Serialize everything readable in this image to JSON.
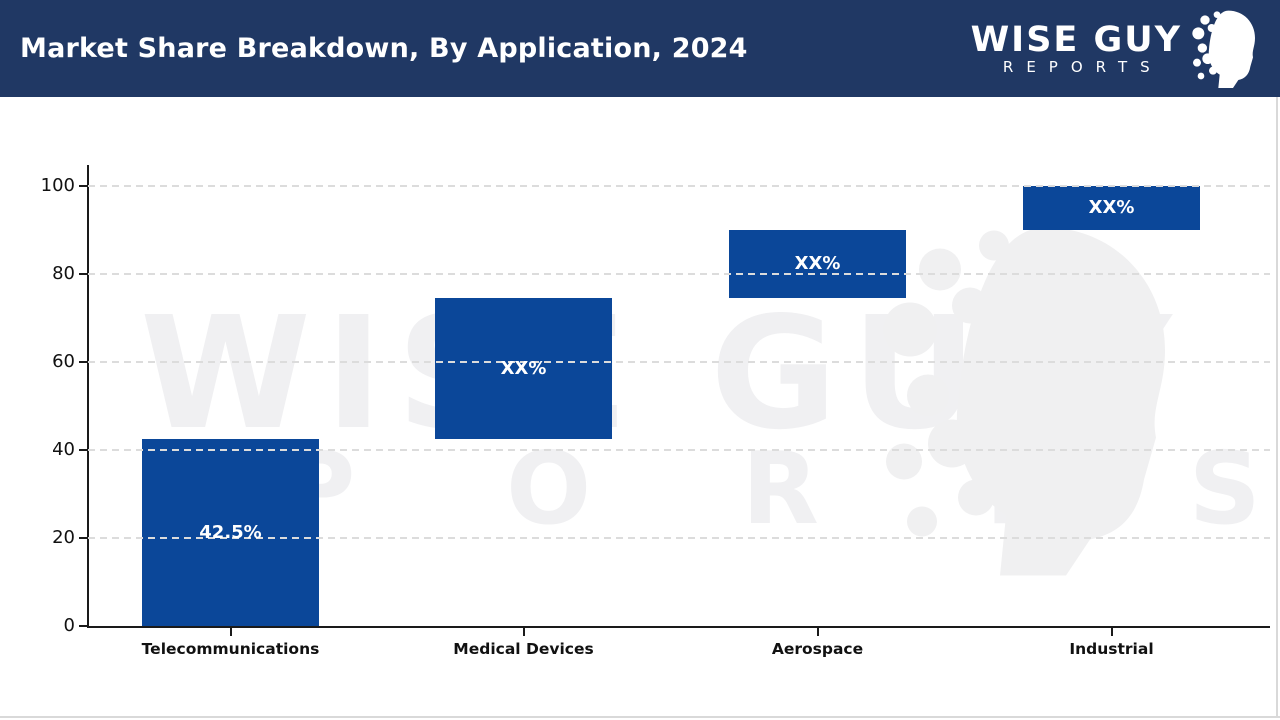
{
  "header": {
    "title": "Market Share Breakdown, By Application, 2024",
    "bg_color": "#203864",
    "logo": {
      "line1": "WISE GUY",
      "line2": "REPORTS"
    }
  },
  "watermark": {
    "line1": "WISE GU Y",
    "line2": "P O R T S"
  },
  "chart_data": {
    "type": "bar",
    "subtype": "waterfall-stacked-share",
    "title": "Market Share Breakdown, By Application, 2024",
    "categories": [
      "Telecommunications",
      "Medical Devices",
      "Aerospace",
      "Industrial"
    ],
    "segments": [
      {
        "category": "Telecommunications",
        "start": 0,
        "end": 42.5,
        "label": "42.5%"
      },
      {
        "category": "Medical Devices",
        "start": 42.5,
        "end": 74.5,
        "label": "XX%"
      },
      {
        "category": "Aerospace",
        "start": 74.5,
        "end": 90,
        "label": "XX%"
      },
      {
        "category": "Industrial",
        "start": 90,
        "end": 100,
        "label": "XX%"
      }
    ],
    "yticks": [
      0,
      20,
      40,
      60,
      80,
      100
    ],
    "ylim": [
      0,
      105
    ],
    "xlabel": "",
    "ylabel": "",
    "legend": "none",
    "grid": "horizontal-dashed",
    "bar_color": "#0b4799",
    "grid_color": "#dcdcdc",
    "value_label_color": "#ffffff"
  }
}
